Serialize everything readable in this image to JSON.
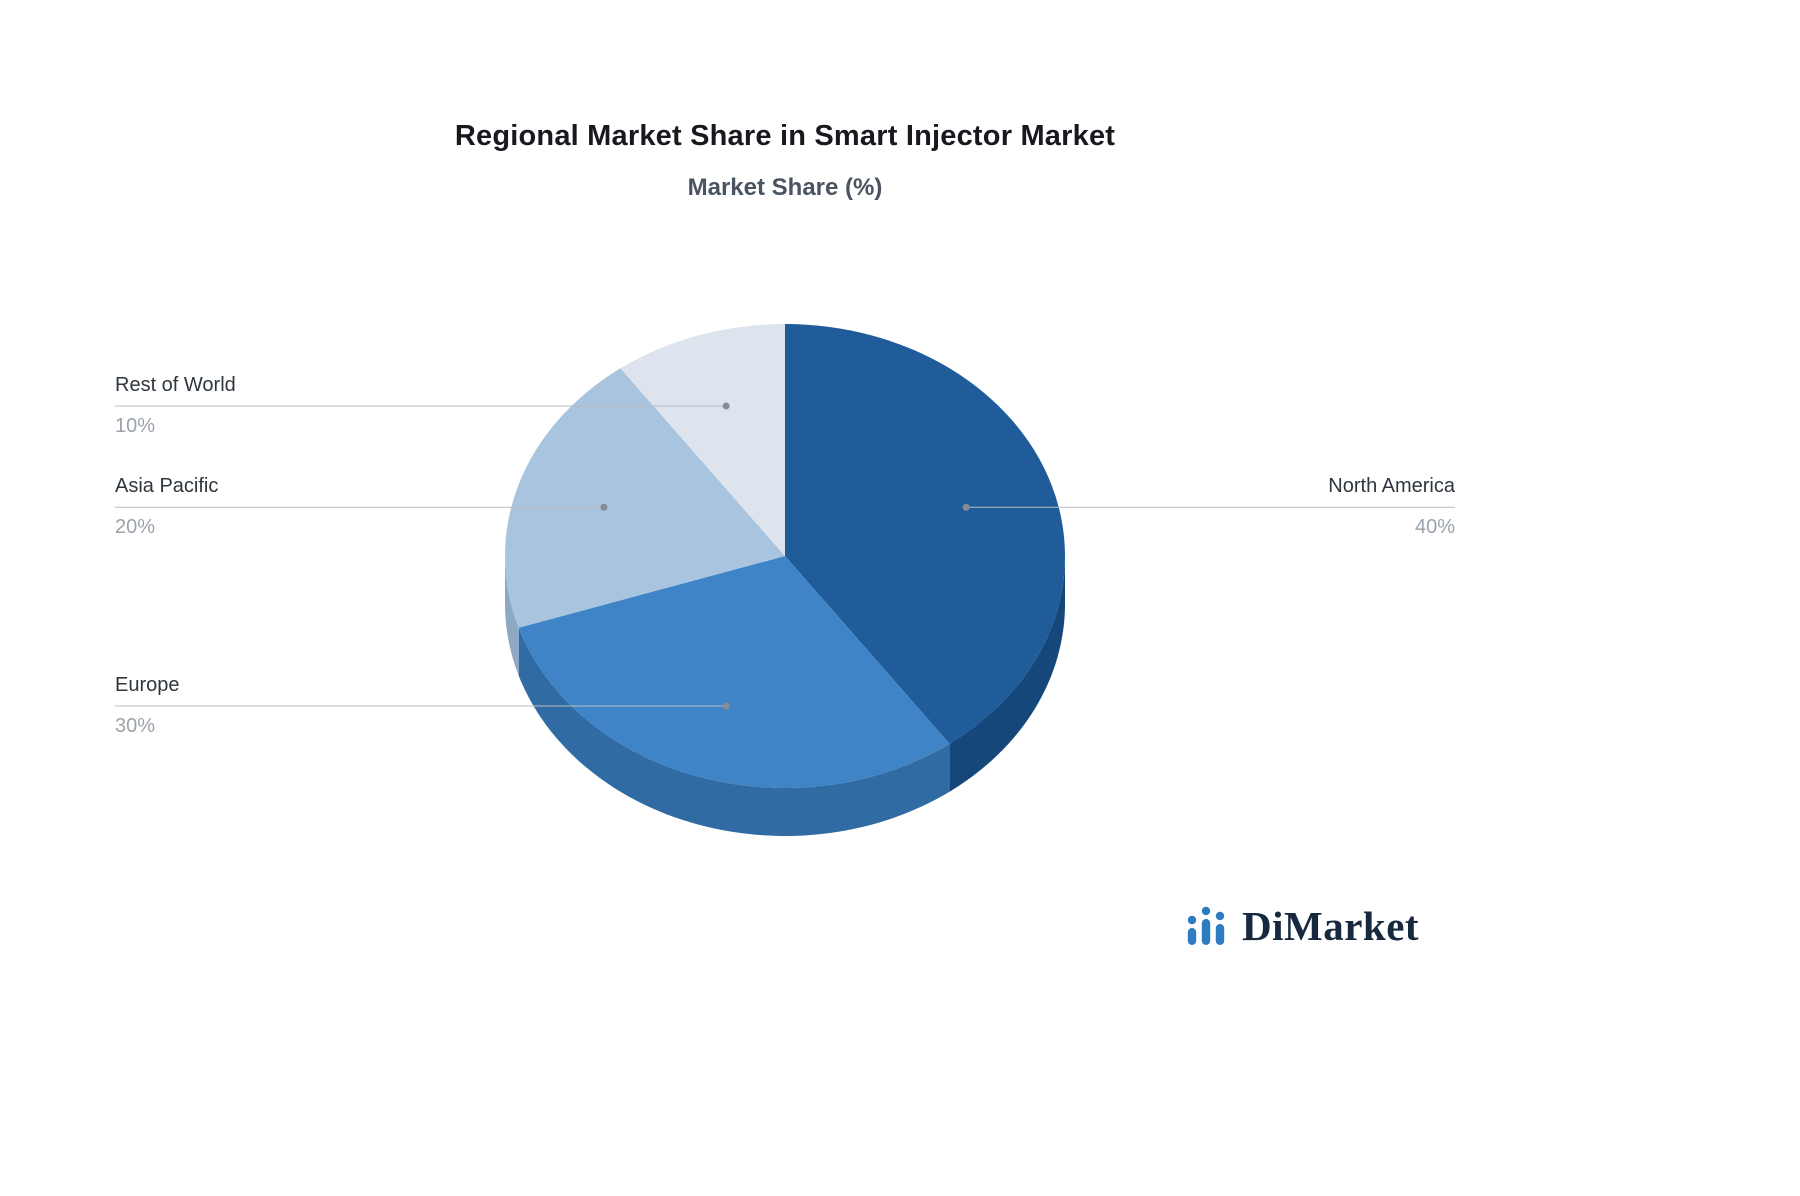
{
  "chart_data": {
    "type": "pie",
    "title": "Regional Market Share in Smart Injector Market",
    "subtitle": "Market Share (%)",
    "value_suffix": "%",
    "direction": "clockwise",
    "start_angle_deg": 0,
    "labels": "callout",
    "legend_position": "none",
    "effect": "3d-depth",
    "slices": [
      {
        "label": "North America",
        "value": 40,
        "display_value": "40%",
        "color": "#1f5c99",
        "side_color": "#15477b"
      },
      {
        "label": "Europe",
        "value": 30,
        "display_value": "30%",
        "color": "#3e84c7",
        "side_color": "#316ba4"
      },
      {
        "label": "Asia Pacific",
        "value": 20,
        "display_value": "20%",
        "color": "#a9c4df",
        "side_color": "#8fa9c4"
      },
      {
        "label": "Rest of World",
        "value": 10,
        "display_value": "10%",
        "color": "#dde4ee",
        "side_color": "#c2cbd9"
      }
    ]
  },
  "branding": {
    "name": "DiMarket",
    "icon": "bar-chart-logo-icon",
    "color": "#2d7cc2",
    "text_color": "#16293f"
  }
}
